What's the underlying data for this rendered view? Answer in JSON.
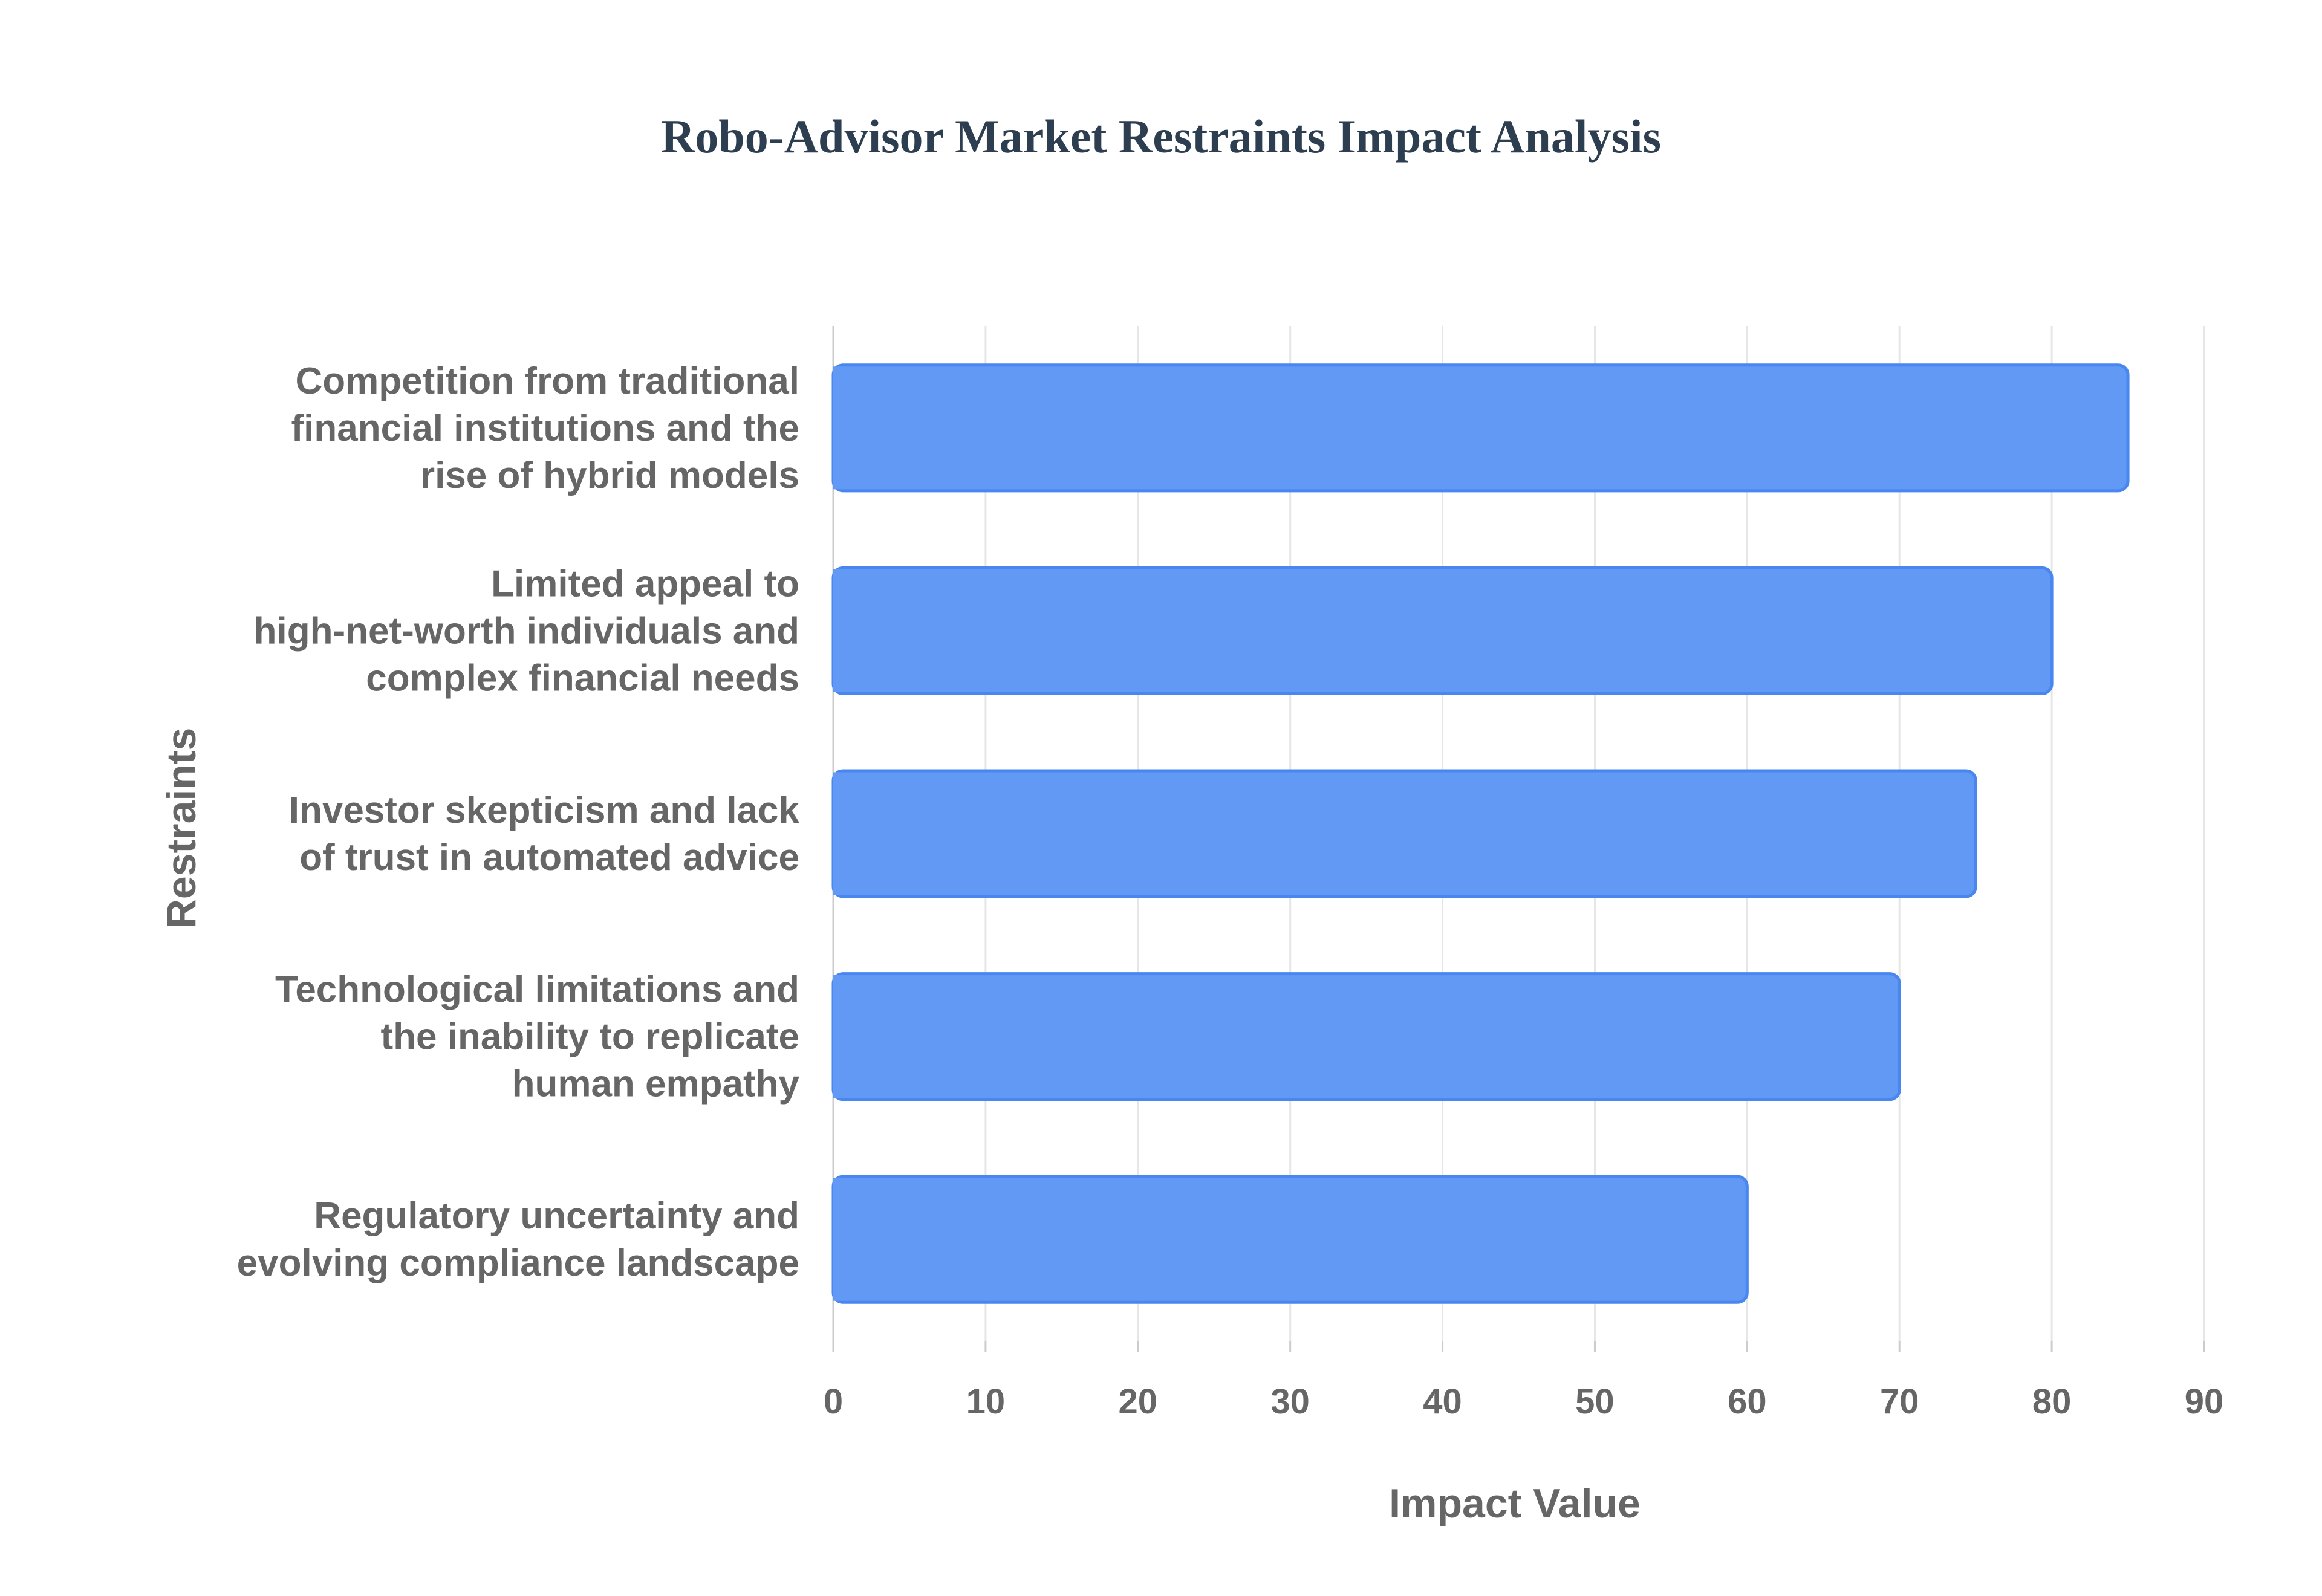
{
  "title": "Robo-Advisor Market Restraints Impact Analysis",
  "chart_data": {
    "type": "bar",
    "orientation": "horizontal",
    "title": "Robo-Advisor Market Restraints Impact Analysis",
    "xlabel": "Impact Value",
    "ylabel": "Restraints",
    "categories": [
      [
        "Competition from traditional",
        "financial institutions and the",
        "rise of hybrid models"
      ],
      [
        "Limited appeal to",
        "high-net-worth individuals and",
        "complex financial needs"
      ],
      [
        "Investor skepticism and lack",
        "of trust in automated advice"
      ],
      [
        "Technological limitations and",
        "the inability to replicate",
        "human empathy"
      ],
      [
        "Regulatory uncertainty and",
        "evolving compliance landscape"
      ]
    ],
    "values": [
      85,
      80,
      75,
      70,
      60
    ],
    "xlim": [
      0,
      90
    ],
    "xticks": [
      "0",
      "10",
      "20",
      "30",
      "40",
      "50",
      "60",
      "70",
      "80",
      "90"
    ],
    "grid": true,
    "legend": "none",
    "colors": {
      "bar_fill": "#6199f4",
      "bar_stroke": "#4a86ef",
      "grid": "#e6e6e6",
      "axis": "#cccccc",
      "title": "#2c3e50",
      "label": "#666666"
    }
  }
}
